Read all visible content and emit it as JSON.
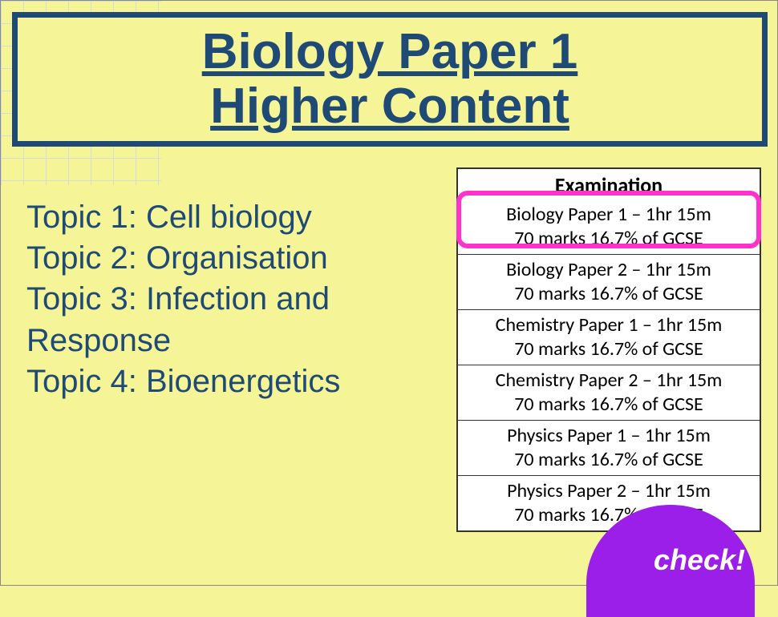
{
  "colors": {
    "bg": "#f5f598",
    "primary": "#1e4a75",
    "highlight": "#ff33cc",
    "burst": "#9b1fe8",
    "white": "#ffffff",
    "grid": "#c8d4e8"
  },
  "title": {
    "line1": "Biology Paper 1",
    "line2": "Higher Content",
    "fontsize": 62,
    "underline": true,
    "bold": true
  },
  "topics": {
    "fontsize": 40,
    "items": [
      "Topic 1: Cell biology",
      "Topic 2: Organisation",
      "Topic 3: Infection and Response",
      "Topic 4: Bioenergetics"
    ]
  },
  "exam_table": {
    "header": "Examination",
    "header_fontsize": 26,
    "row_fontsize": 24,
    "highlighted_row_index": 0,
    "rows": [
      {
        "line1": "Biology Paper 1 – 1hr 15m",
        "line2": "70 marks 16.7% of GCSE"
      },
      {
        "line1": "Biology Paper 2 – 1hr 15m",
        "line2": "70 marks 16.7% of GCSE"
      },
      {
        "line1": "Chemistry Paper 1 – 1hr 15m",
        "line2": "70 marks 16.7% of GCSE"
      },
      {
        "line1": "Chemistry Paper 2 – 1hr 15m",
        "line2": "70 marks 16.7% of GCSE"
      },
      {
        "line1": "Physics Paper 1 – 1hr 15m",
        "line2": "70 marks 16.7% of GCSE"
      },
      {
        "line1": "Physics Paper 2 – 1hr 15m",
        "line2": "70 marks 16.7% of GCSE"
      }
    ]
  },
  "burst": {
    "text": "check!"
  }
}
